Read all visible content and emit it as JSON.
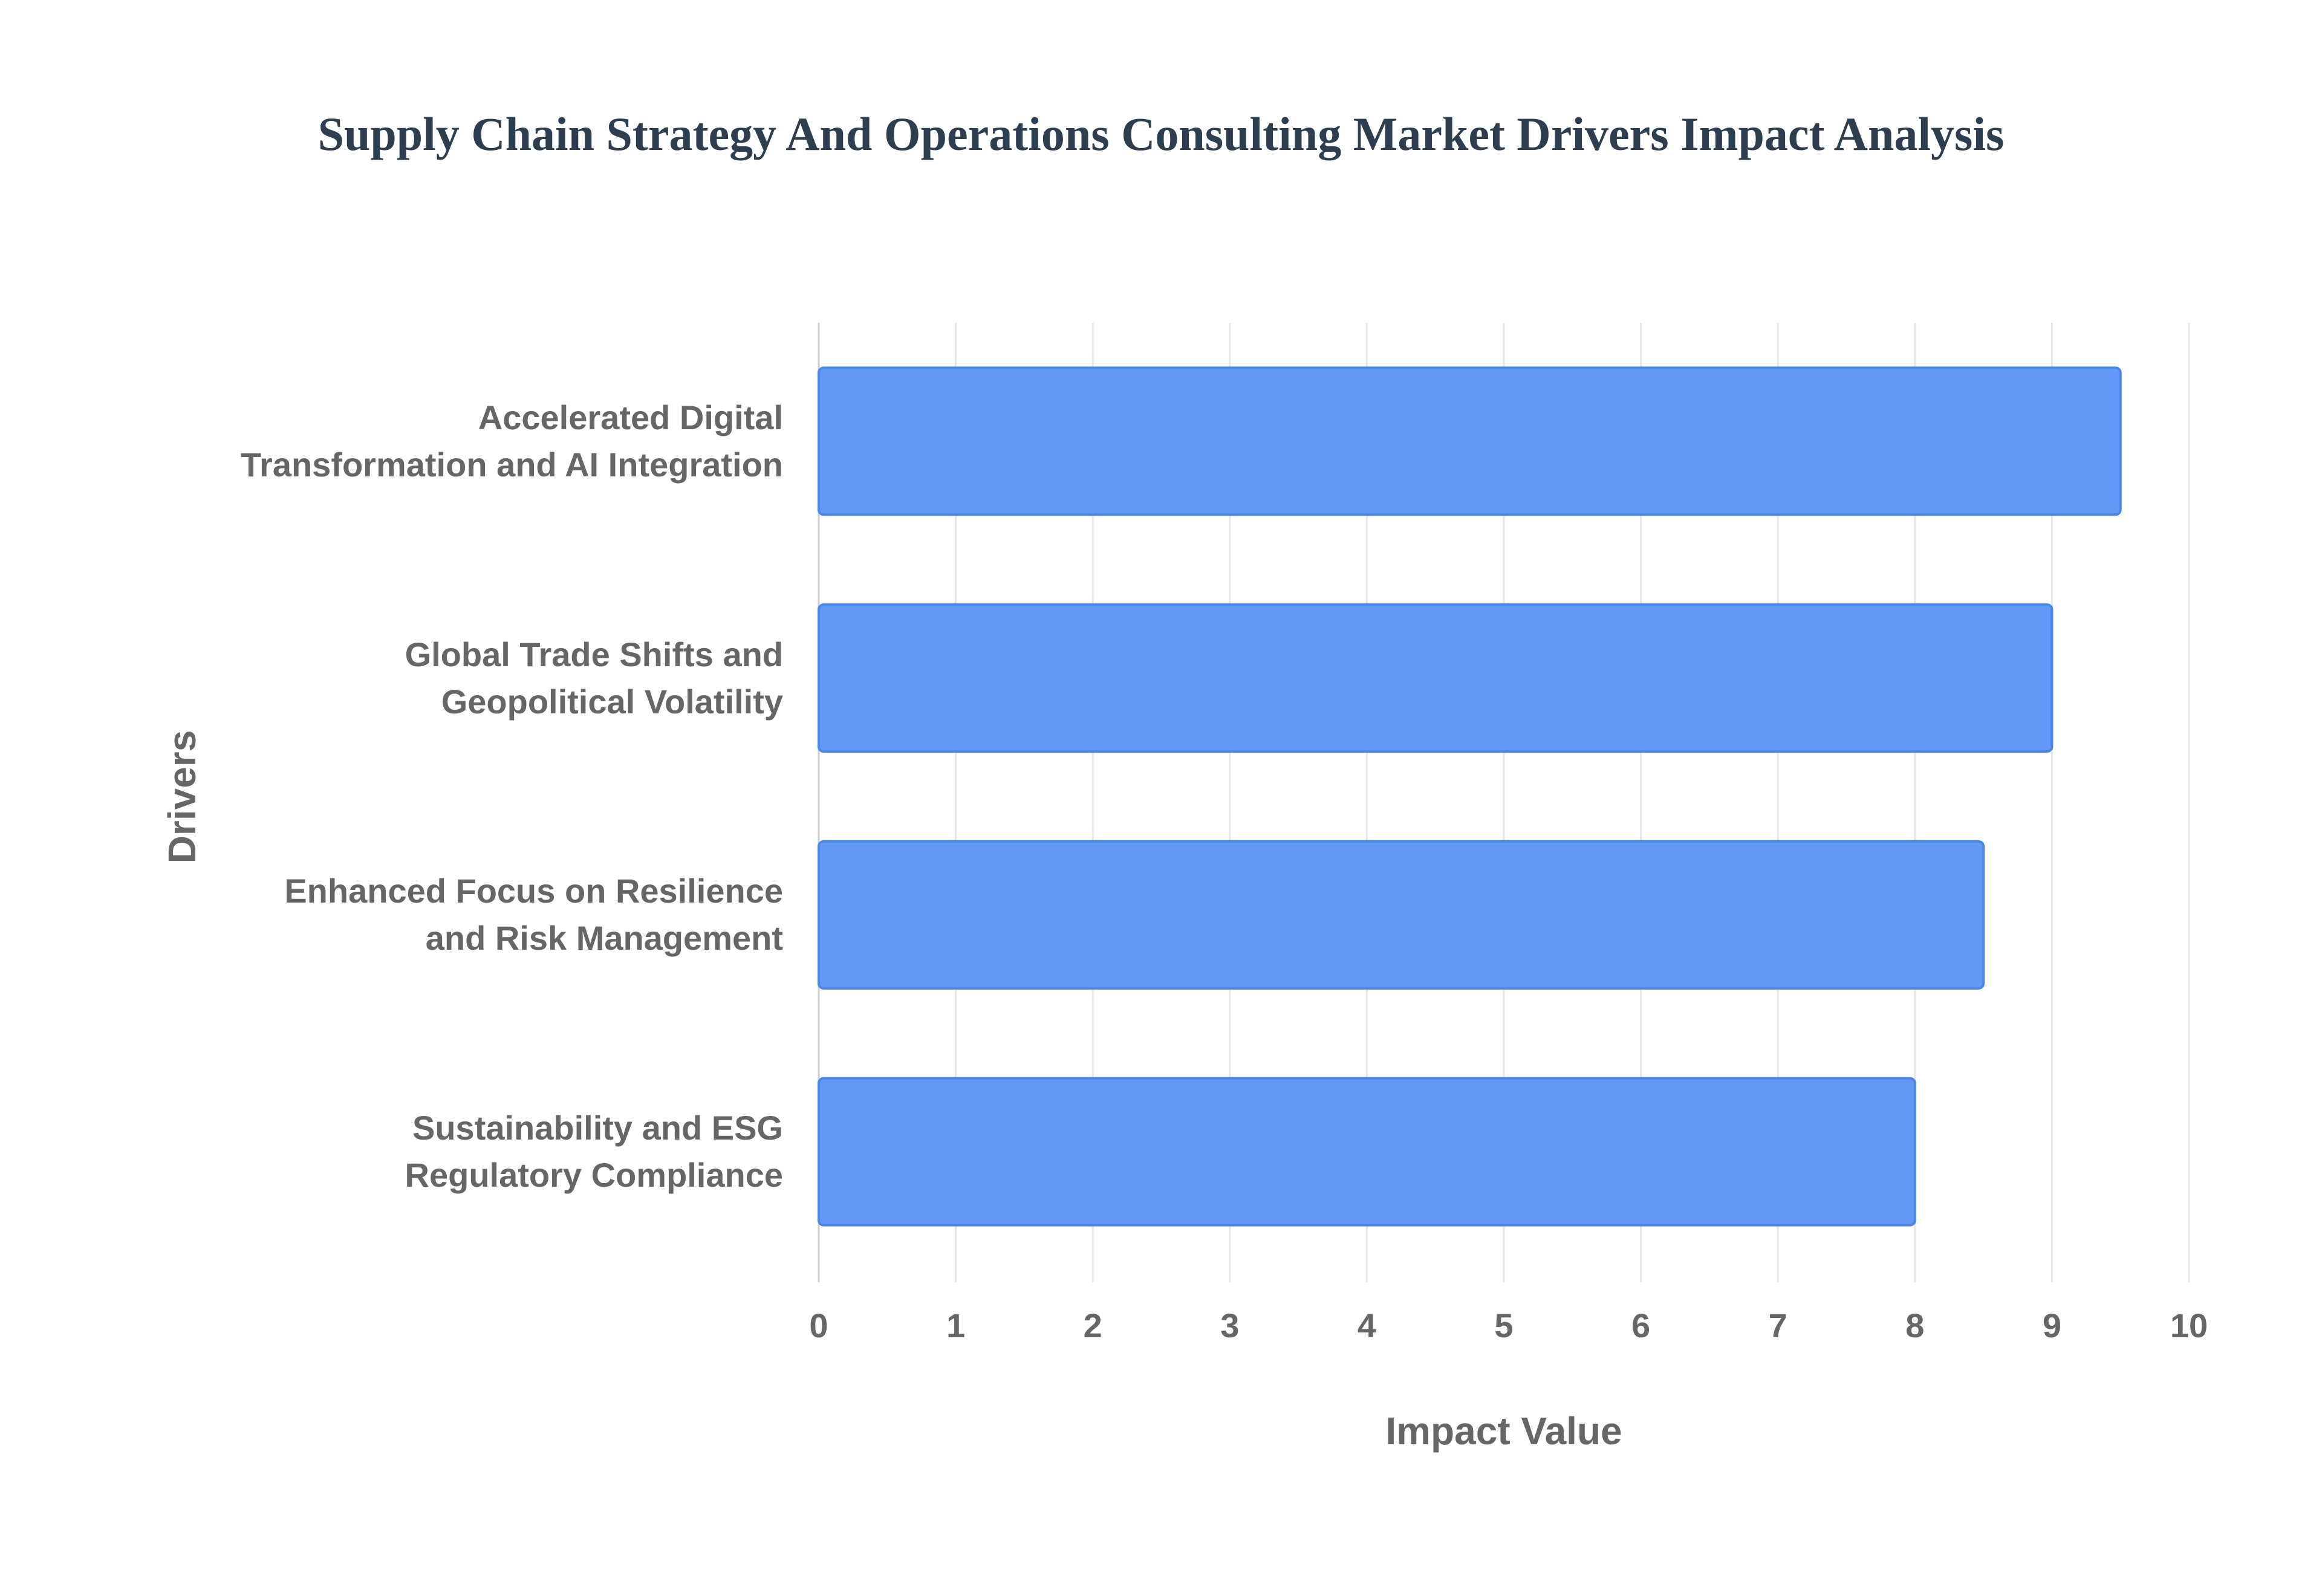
{
  "chart_data": {
    "type": "bar",
    "orientation": "horizontal",
    "title": "Supply Chain Strategy And Operations Consulting Market Drivers Impact Analysis",
    "x_label": "Impact Value",
    "y_label": "Drivers",
    "categories": [
      "Accelerated Digital Transformation and AI Integration",
      "Global Trade Shifts and Geopolitical Volatility",
      "Enhanced Focus on Resilience and Risk Management",
      "Sustainability and ESG Regulatory Compliance"
    ],
    "values": [
      9.5,
      9,
      8.5,
      8
    ],
    "color": "#6399f5",
    "xlim": [
      0,
      10
    ],
    "xticks": [
      0,
      1,
      2,
      3,
      4,
      5,
      6,
      7,
      8,
      9,
      10
    ],
    "grid": true
  }
}
